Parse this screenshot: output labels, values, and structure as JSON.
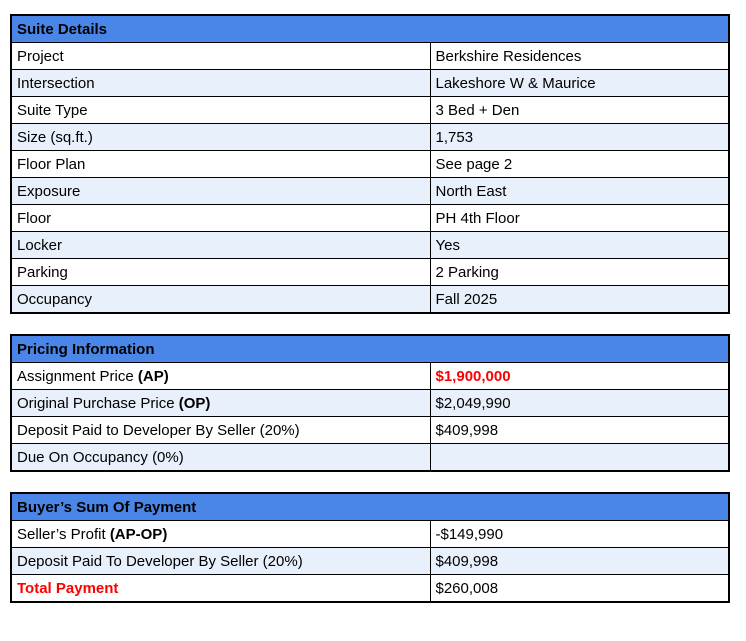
{
  "colors": {
    "header_blue": "#4a86e8",
    "band_blue": "#e8f0fb",
    "accent_red": "#ff0000",
    "border": "#000000"
  },
  "tables": [
    {
      "title": "Suite Details",
      "rows": [
        {
          "label": "Project",
          "value": "Berkshire Residences"
        },
        {
          "label": "Intersection",
          "value": "Lakeshore W & Maurice"
        },
        {
          "label": "Suite Type",
          "value": "3 Bed + Den"
        },
        {
          "label": "Size (sq.ft.)",
          "value": "1,753"
        },
        {
          "label": "Floor Plan",
          "value": "See page 2"
        },
        {
          "label": "Exposure",
          "value": "North East"
        },
        {
          "label": "Floor",
          "value": "PH 4th Floor"
        },
        {
          "label": "Locker",
          "value": "Yes"
        },
        {
          "label": "Parking",
          "value": "2 Parking"
        },
        {
          "label": "Occupancy",
          "value": "Fall 2025"
        }
      ]
    },
    {
      "title": "Pricing Information",
      "rows": [
        {
          "label": "Assignment Price ",
          "label_bold": "(AP)",
          "value": "$1,900,000",
          "value_style": "red-bold"
        },
        {
          "label": "Original Purchase Price ",
          "label_bold": "(OP)",
          "value": "$2,049,990"
        },
        {
          "label": "Deposit Paid to Developer By Seller (20%)",
          "value": "$409,998"
        },
        {
          "label": "Due On Occupancy (0%)",
          "value": ""
        }
      ]
    },
    {
      "title": "Buyer’s Sum Of Payment",
      "rows": [
        {
          "label": "Seller’s Profit ",
          "label_bold": "(AP-OP)",
          "value": "-$149,990"
        },
        {
          "label": "Deposit Paid To Developer By Seller (20%)",
          "value": "$409,998"
        },
        {
          "label": "Total Payment",
          "label_style": "red-bold",
          "value": "$260,008"
        }
      ]
    }
  ]
}
